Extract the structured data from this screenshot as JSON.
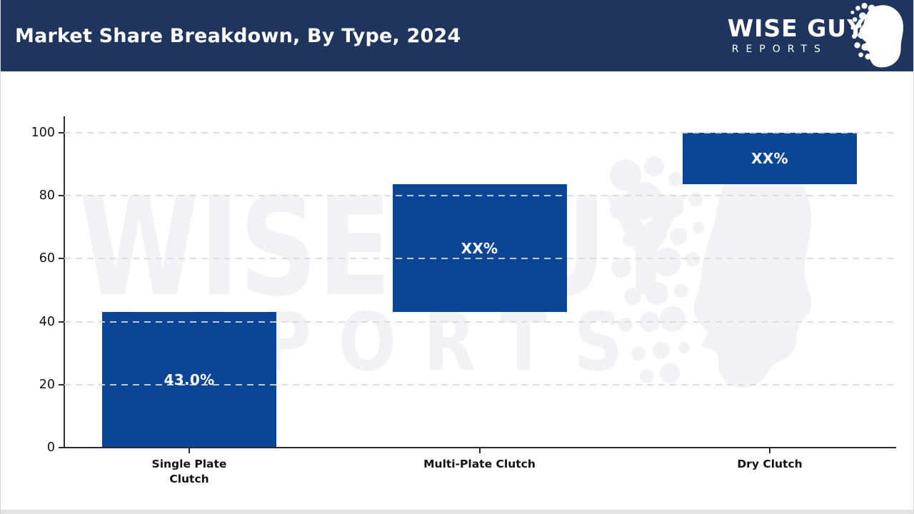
{
  "header": {
    "title": "Market Share Breakdown, By Type, 2024",
    "logo": {
      "line1": "WISE GUY",
      "line2": "REPORTS"
    }
  },
  "watermark": {
    "line1": "WISE GUY",
    "line2": "REPORTS"
  },
  "chart_data": {
    "type": "bar",
    "variant": "floating-segment-waterfall",
    "title": "Market Share Breakdown, By Type, 2024",
    "categories": [
      "Single Plate\nClutch",
      "Multi-Plate Clutch",
      "Dry Clutch"
    ],
    "bars": [
      {
        "category": "Single Plate Clutch",
        "start": 0,
        "end": 43,
        "label": "43.0%"
      },
      {
        "category": "Multi-Plate Clutch",
        "start": 43,
        "end": 83.7,
        "label": "XX%"
      },
      {
        "category": "Dry Clutch",
        "start": 83.7,
        "end": 100,
        "label": "XX%"
      }
    ],
    "ylim": [
      0,
      100
    ],
    "yticks": [
      0,
      20,
      40,
      60,
      80,
      100
    ],
    "xlabel": "",
    "ylabel": "",
    "grid": "dashed-horizontal",
    "legend": false
  },
  "colors": {
    "header_bg": "#1f355e",
    "bar": "#0a4695",
    "grid": "#d9d9d9",
    "axis": "#2b2b2b",
    "tick_text": "#111111",
    "value_label": "#ffffff",
    "watermark": "#f2f2f4",
    "footer_strip": "#e4e4e4"
  }
}
